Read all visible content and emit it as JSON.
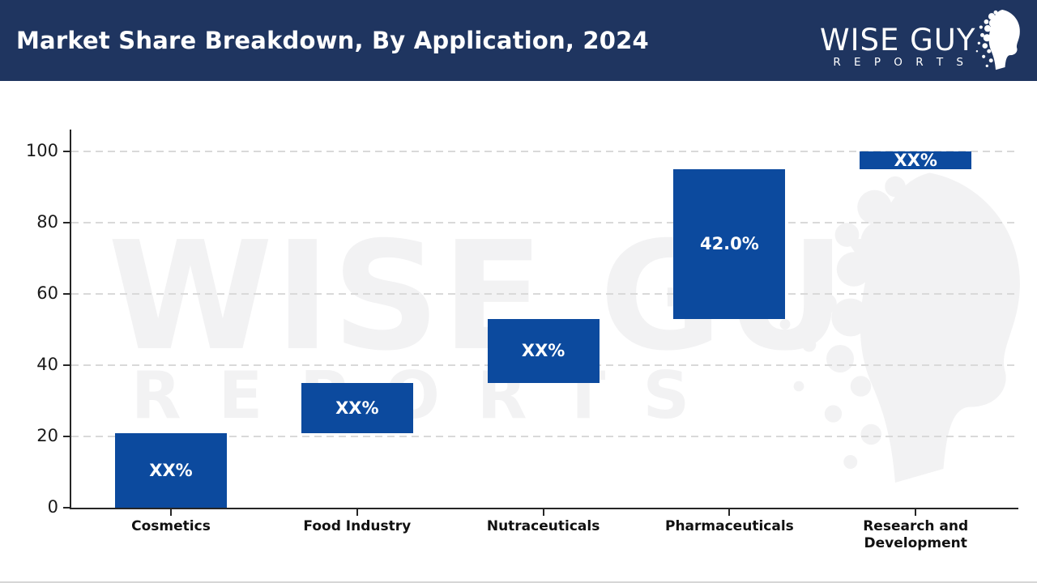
{
  "header": {
    "title": "Market Share Breakdown, By Application, 2024",
    "brand": {
      "name": "WISE GUY",
      "sub": "R E P O R T S"
    }
  },
  "watermark": {
    "line1": "WISE GUY",
    "line2": "REPORTS"
  },
  "colors": {
    "header_bg": "#1f3560",
    "bar": "#0c4a9e",
    "grid": "#d9d9d9",
    "axis": "#262626",
    "watermark": "#f2f2f3",
    "bar_label": "#ffffff"
  },
  "chart_data": {
    "type": "bar",
    "variant": "waterfall",
    "title": "Market Share Breakdown, By Application, 2024",
    "xlabel": "",
    "ylabel": "",
    "ylim": [
      0,
      100
    ],
    "yticks": [
      0,
      20,
      40,
      60,
      80,
      100
    ],
    "grid": "dashed-horizontal",
    "legend": "none",
    "categories": [
      "Cosmetics",
      "Food Industry",
      "Nutraceuticals",
      "Pharmaceuticals",
      "Research and Development"
    ],
    "segments": [
      {
        "category": "Cosmetics",
        "start": 0,
        "end": 21,
        "value": 21,
        "label": "XX%"
      },
      {
        "category": "Food Industry",
        "start": 21,
        "end": 35,
        "value": 14,
        "label": "XX%"
      },
      {
        "category": "Nutraceuticals",
        "start": 35,
        "end": 53,
        "value": 18,
        "label": "XX%"
      },
      {
        "category": "Pharmaceuticals",
        "start": 53,
        "end": 95,
        "value": 42,
        "label": "42.0%"
      },
      {
        "category": "Research and Development",
        "start": 95,
        "end": 100,
        "value": 5,
        "label": "XX%"
      }
    ]
  }
}
